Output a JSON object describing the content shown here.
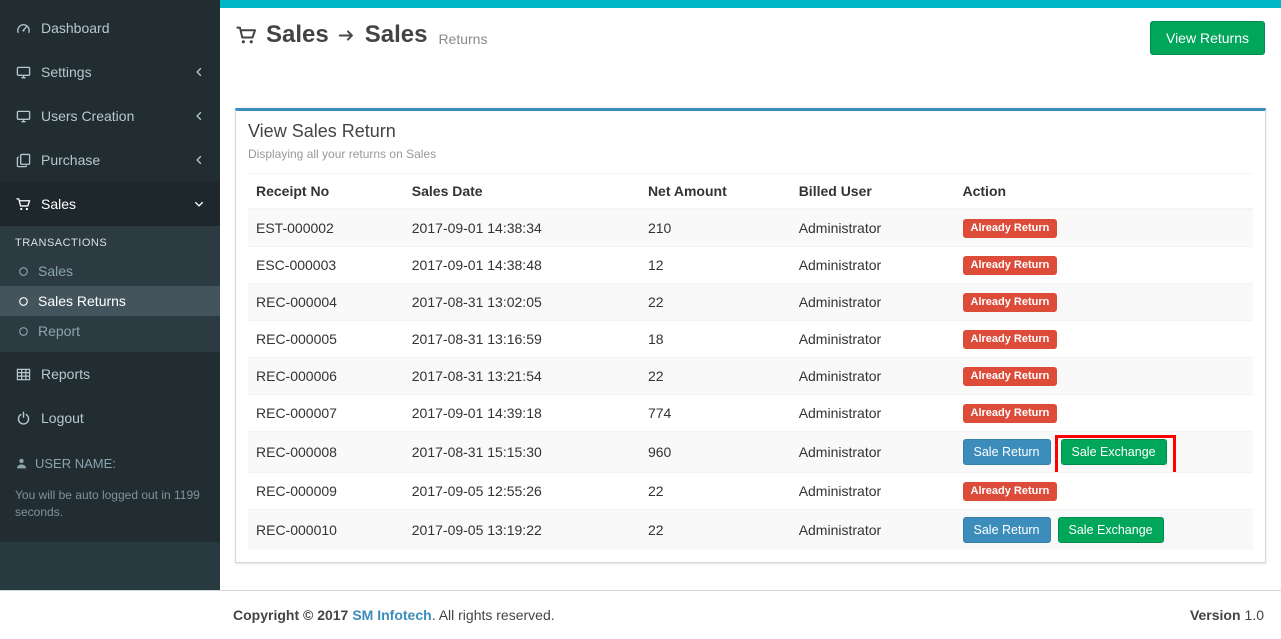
{
  "colors": {
    "topbar": "#00b7c7",
    "sidebar_bg": "#222d32",
    "sidebar_active_bg": "#1e282c",
    "submenu_bg": "#2c3b41",
    "primary": "#3c8dbc",
    "success": "#00a65a",
    "danger": "#dd4b39"
  },
  "sidebar": {
    "items": [
      {
        "label": "Dashboard"
      },
      {
        "label": "Settings"
      },
      {
        "label": "Users Creation"
      },
      {
        "label": "Purchase"
      },
      {
        "label": "Sales"
      }
    ],
    "transactions_header": "TRANSACTIONS",
    "submenu": [
      {
        "label": "Sales"
      },
      {
        "label": "Sales Returns"
      },
      {
        "label": "Report"
      }
    ],
    "bottom_items": [
      {
        "label": "Reports"
      },
      {
        "label": "Logout"
      }
    ],
    "user_label": "USER NAME:",
    "auto_logout_notice": "You will be auto logged out in 1199 seconds."
  },
  "header": {
    "breadcrumb_section": "Sales",
    "breadcrumb_page": "Sales",
    "breadcrumb_sub": "Returns",
    "view_returns_button": "View Returns"
  },
  "card": {
    "title": "View Sales Return",
    "subtitle": "Displaying all your returns on Sales",
    "table": {
      "columns": [
        "Receipt No",
        "Sales Date",
        "Net Amount",
        "Billed User",
        "Action"
      ],
      "rows": [
        {
          "receipt": "EST-000002",
          "date": "2017-09-01 14:38:34",
          "amount": "210",
          "user": "Administrator",
          "actions": [
            {
              "label": "Already Return",
              "style": "danger"
            }
          ]
        },
        {
          "receipt": "ESC-000003",
          "date": "2017-09-01 14:38:48",
          "amount": "12",
          "user": "Administrator",
          "actions": [
            {
              "label": "Already Return",
              "style": "danger"
            }
          ]
        },
        {
          "receipt": "REC-000004",
          "date": "2017-08-31 13:02:05",
          "amount": "22",
          "user": "Administrator",
          "actions": [
            {
              "label": "Already Return",
              "style": "danger"
            }
          ]
        },
        {
          "receipt": "REC-000005",
          "date": "2017-08-31 13:16:59",
          "amount": "18",
          "user": "Administrator",
          "actions": [
            {
              "label": "Already Return",
              "style": "danger"
            }
          ]
        },
        {
          "receipt": "REC-000006",
          "date": "2017-08-31 13:21:54",
          "amount": "22",
          "user": "Administrator",
          "actions": [
            {
              "label": "Already Return",
              "style": "danger"
            }
          ]
        },
        {
          "receipt": "REC-000007",
          "date": "2017-09-01 14:39:18",
          "amount": "774",
          "user": "Administrator",
          "actions": [
            {
              "label": "Already Return",
              "style": "danger"
            }
          ]
        },
        {
          "receipt": "REC-000008",
          "date": "2017-08-31 15:15:30",
          "amount": "960",
          "user": "Administrator",
          "actions": [
            {
              "label": "Sale Return",
              "style": "primary"
            },
            {
              "label": "Sale Exchange",
              "style": "success",
              "highlighted": true
            }
          ]
        },
        {
          "receipt": "REC-000009",
          "date": "2017-09-05 12:55:26",
          "amount": "22",
          "user": "Administrator",
          "actions": [
            {
              "label": "Already Return",
              "style": "danger"
            }
          ]
        },
        {
          "receipt": "REC-000010",
          "date": "2017-09-05 13:19:22",
          "amount": "22",
          "user": "Administrator",
          "actions": [
            {
              "label": "Sale Return",
              "style": "primary"
            },
            {
              "label": "Sale Exchange",
              "style": "success"
            }
          ]
        }
      ]
    }
  },
  "footer": {
    "copyright": "Copyright © 2017",
    "company": "SM Infotech",
    "rights": ". All rights reserved.",
    "version_label": "Version",
    "version_value": "1.0"
  }
}
